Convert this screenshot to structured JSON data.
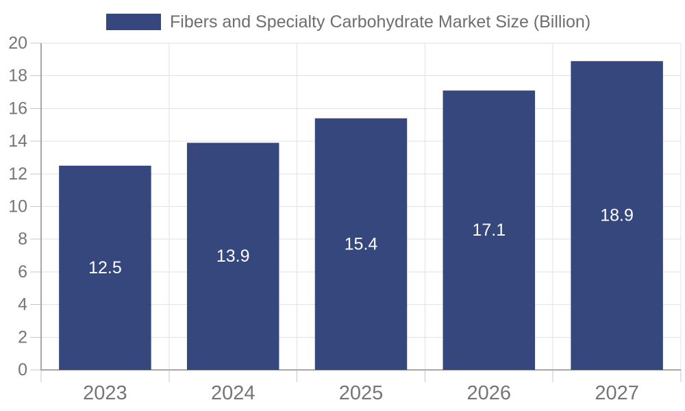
{
  "colors": {
    "bar": "#35477D",
    "grid": "#e2e2e2",
    "axis": "#a6a6a6",
    "tick": "#c7c7c7",
    "tick_label": "#757575",
    "bar_label": "#ffffff",
    "title_text": "#6e6e6e",
    "background": "#ffffff"
  },
  "chart_data": {
    "type": "bar",
    "title": "Fibers and Specialty Carbohydrate Market Size (Billion)",
    "legend_label": "Fibers and Specialty Carbohydrate Market Size (Billion)",
    "legend_position": "top-center",
    "categories": [
      "2023",
      "2024",
      "2025",
      "2026",
      "2027"
    ],
    "values": [
      12.5,
      13.9,
      15.4,
      17.1,
      18.9
    ],
    "bar_value_labels": [
      "12.5",
      "13.9",
      "15.4",
      "17.1",
      "18.9"
    ],
    "xlabel": "",
    "ylabel": "",
    "ylim": [
      0,
      20
    ],
    "ytick_step": 2,
    "yticks": [
      0,
      2,
      4,
      6,
      8,
      10,
      12,
      14,
      16,
      18,
      20
    ],
    "grid": true
  }
}
